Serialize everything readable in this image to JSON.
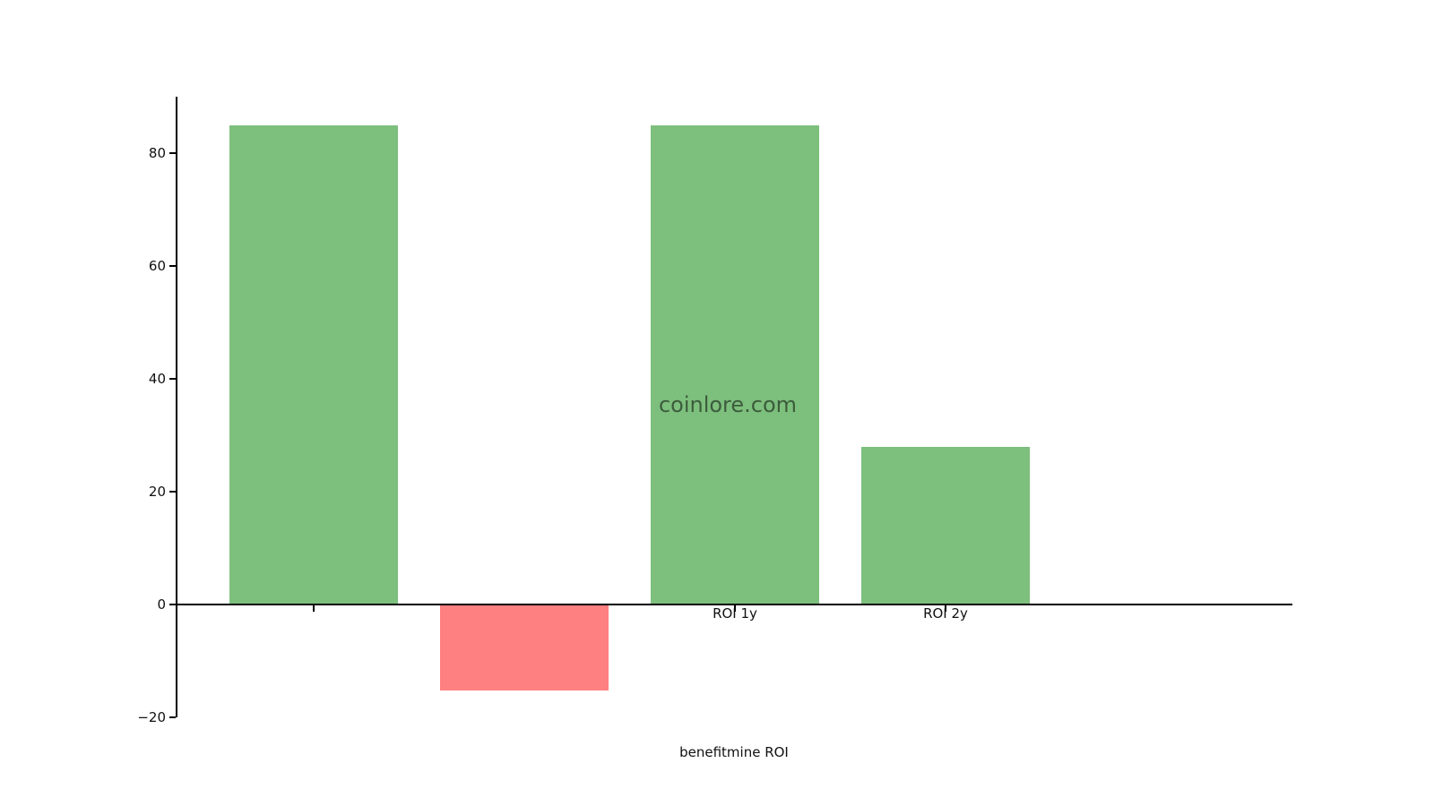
{
  "chart_data": {
    "type": "bar",
    "xlabel": "benefitmine ROI",
    "watermark": "coinlore.com",
    "categories": [
      "",
      "",
      "ROI 1y",
      "ROI 2y"
    ],
    "values": [
      85,
      -15,
      85,
      28
    ],
    "ylim": [
      -20,
      90
    ],
    "yticks": [
      80,
      60,
      40,
      20,
      0,
      -20
    ],
    "ytick_labels": [
      "80",
      "60",
      "40",
      "20",
      "0",
      "−20"
    ],
    "grid": "off",
    "legend": "none",
    "colors": {
      "positive_bar": "#7dbf7d",
      "negative_bar": "#ff8080",
      "axis": "#000000",
      "watermark_text": "rgba(0,0,0,0.52)"
    }
  }
}
